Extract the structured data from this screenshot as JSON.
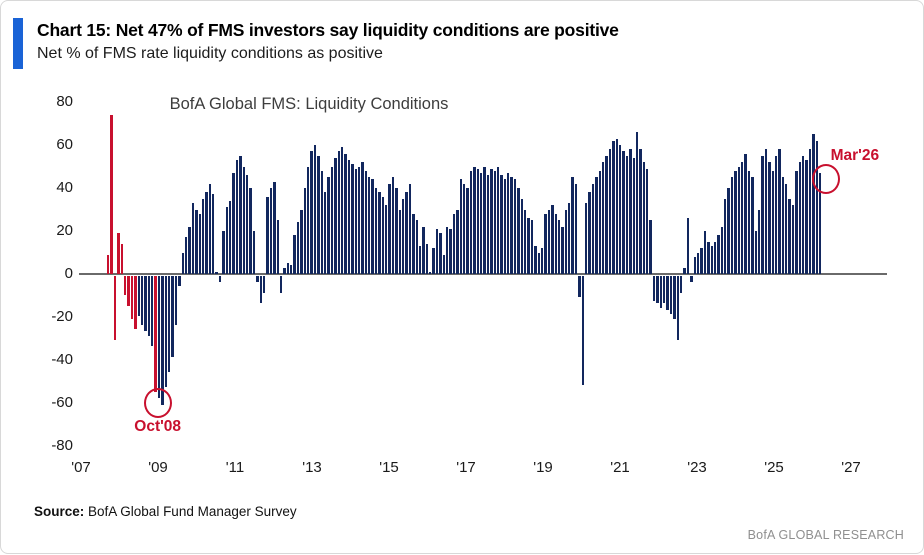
{
  "header": {
    "title": "Chart 15: Net 47% of FMS investors say liquidity conditions are positive",
    "subtitle": "Net % of FMS rate liquidity conditions as positive",
    "accent_color": "#1a63d6"
  },
  "chart_data": {
    "type": "bar",
    "title": "BofA Global FMS: Liquidity Conditions",
    "ylabel": "Net % of FMS rate liquidity conditions as positive",
    "unit": "net %",
    "frequency": "monthly",
    "x_start": "Aug 2007",
    "x_end": "Mar 2026",
    "ylim": [
      -80,
      80
    ],
    "y_ticks": [
      80,
      60,
      40,
      20,
      0,
      -20,
      -40,
      -60,
      -80
    ],
    "x_tick_labels": [
      "'07",
      "'09",
      "'11",
      "'13",
      "'15",
      "'17",
      "'19",
      "'21",
      "'23",
      "'25",
      "'27"
    ],
    "grid": false,
    "legend": false,
    "bar_color": "#12275e",
    "highlight_color": "#c8102e",
    "red_bar_indices": [
      0,
      1,
      2,
      3,
      4,
      5,
      6,
      7,
      8,
      14
    ],
    "values": [
      9,
      74,
      -30,
      19,
      14,
      -9,
      -14,
      -20,
      -25,
      -19,
      -23,
      -26,
      -28,
      -33,
      -54,
      -57,
      -60,
      -52,
      -45,
      -38,
      -23,
      -5,
      10,
      17,
      22,
      33,
      30,
      28,
      35,
      38,
      42,
      37,
      1,
      -3,
      20,
      31,
      34,
      47,
      53,
      55,
      50,
      46,
      40,
      20,
      -3,
      -13,
      -8,
      36,
      40,
      43,
      25,
      -8,
      3,
      5,
      4,
      18,
      24,
      30,
      40,
      50,
      57,
      60,
      55,
      48,
      38,
      45,
      50,
      54,
      57,
      59,
      56,
      53,
      51,
      49,
      50,
      52,
      48,
      45,
      44,
      40,
      38,
      36,
      32,
      42,
      45,
      40,
      30,
      35,
      38,
      42,
      28,
      25,
      13,
      22,
      14,
      1,
      12,
      21,
      19,
      9,
      22,
      21,
      28,
      30,
      44,
      42,
      40,
      48,
      50,
      49,
      47,
      50,
      46,
      49,
      48,
      50,
      46,
      44,
      47,
      45,
      44,
      40,
      35,
      30,
      26,
      25,
      13,
      10,
      12,
      28,
      30,
      32,
      28,
      25,
      22,
      30,
      33,
      45,
      42,
      -10,
      -51,
      33,
      38,
      42,
      45,
      48,
      52,
      55,
      58,
      62,
      63,
      60,
      57,
      55,
      58,
      54,
      66,
      58,
      52,
      49,
      25,
      -12,
      -13,
      -15,
      -13,
      -16,
      -18,
      -20,
      -30,
      -8,
      3,
      26,
      -3,
      8,
      10,
      12,
      20,
      15,
      13,
      15,
      18,
      22,
      35,
      40,
      45,
      48,
      50,
      52,
      56,
      48,
      45,
      20,
      30,
      55,
      58,
      52,
      48,
      55,
      58,
      45,
      42,
      35,
      32,
      48,
      52,
      55,
      53,
      58,
      65,
      62,
      47
    ],
    "annotations": [
      {
        "label": "Oct'08",
        "bar_index": 14,
        "value": -54,
        "circle_y": -59,
        "placement": "below"
      },
      {
        "label": "Mar'26",
        "bar_index": 211,
        "value": 47,
        "circle_y": 45,
        "placement": "above-right"
      }
    ]
  },
  "footer": {
    "source_label": "Source:",
    "source_text": " BofA Global Fund Manager Survey",
    "brand": "BofA GLOBAL RESEARCH"
  }
}
